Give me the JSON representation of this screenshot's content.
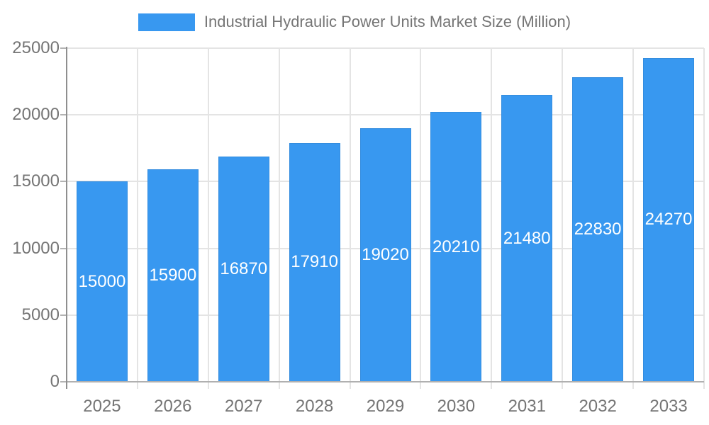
{
  "chart_data": {
    "type": "bar",
    "title": "Industrial Hydraulic Power Units Market Size (Million)",
    "legend_position": "top",
    "categories": [
      "2025",
      "2026",
      "2027",
      "2028",
      "2029",
      "2030",
      "2031",
      "2032",
      "2033"
    ],
    "series": [
      {
        "name": "Industrial Hydraulic Power Units Market Size (Million)",
        "values": [
          15000,
          15900,
          16870,
          17910,
          19020,
          20210,
          21480,
          22830,
          24270
        ]
      }
    ],
    "bar_value_labels": [
      "15000",
      "15900",
      "16870",
      "17910",
      "19020",
      "20210",
      "21480",
      "22830",
      "24270"
    ],
    "xlabel": "",
    "ylabel": "",
    "ylim": [
      0,
      25000
    ],
    "yticks": [
      0,
      5000,
      10000,
      15000,
      20000,
      25000
    ],
    "ytick_labels": [
      "0",
      "5000",
      "10000",
      "15000",
      "20000",
      "25000"
    ],
    "grid": true,
    "colors": {
      "bar": "#3898F0",
      "bar_value_label": "#FFFFFF",
      "axis_text": "#757575",
      "gridline": "#E4E4E4",
      "y_axis_line": "#8F8F8F",
      "x_axis_line": "#B0B0B0",
      "tick_mark": "#B3B3B3",
      "background": "#FFFFFF"
    }
  }
}
